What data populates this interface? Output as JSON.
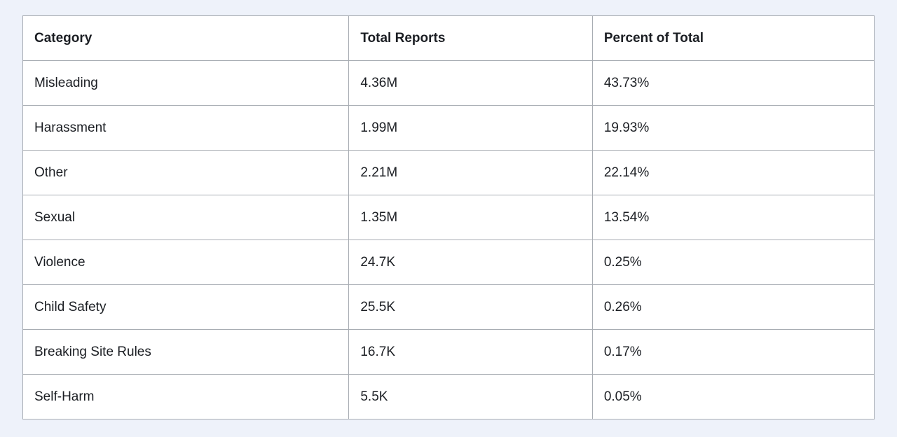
{
  "table": {
    "columns": [
      "Category",
      "Total Reports",
      "Percent of Total"
    ],
    "rows": [
      {
        "category": "Misleading",
        "total_reports": "4.36M",
        "percent_of_total": "43.73%"
      },
      {
        "category": "Harassment",
        "total_reports": "1.99M",
        "percent_of_total": "19.93%"
      },
      {
        "category": "Other",
        "total_reports": "2.21M",
        "percent_of_total": "22.14%"
      },
      {
        "category": "Sexual",
        "total_reports": "1.35M",
        "percent_of_total": "13.54%"
      },
      {
        "category": "Violence",
        "total_reports": "24.7K",
        "percent_of_total": "0.25%"
      },
      {
        "category": "Child Safety",
        "total_reports": "25.5K",
        "percent_of_total": "0.26%"
      },
      {
        "category": "Breaking Site Rules",
        "total_reports": "16.7K",
        "percent_of_total": "0.17%"
      },
      {
        "category": "Self-Harm",
        "total_reports": "5.5K",
        "percent_of_total": "0.05%"
      }
    ]
  },
  "colors": {
    "page_background": "#eef2fa",
    "cell_background": "#ffffff",
    "border": "#a8adb3",
    "text": "#1b1e23"
  },
  "chart_data": {
    "type": "table",
    "title": "",
    "columns": [
      "Category",
      "Total Reports",
      "Percent of Total"
    ],
    "categories": [
      "Misleading",
      "Harassment",
      "Other",
      "Sexual",
      "Violence",
      "Child Safety",
      "Breaking Site Rules",
      "Self-Harm"
    ],
    "series": [
      {
        "name": "Total Reports",
        "values": [
          "4.36M",
          "1.99M",
          "2.21M",
          "1.35M",
          "24.7K",
          "25.5K",
          "16.7K",
          "5.5K"
        ]
      },
      {
        "name": "Percent of Total (%)",
        "values": [
          43.73,
          19.93,
          22.14,
          13.54,
          0.25,
          0.26,
          0.17,
          0.05
        ]
      }
    ]
  }
}
